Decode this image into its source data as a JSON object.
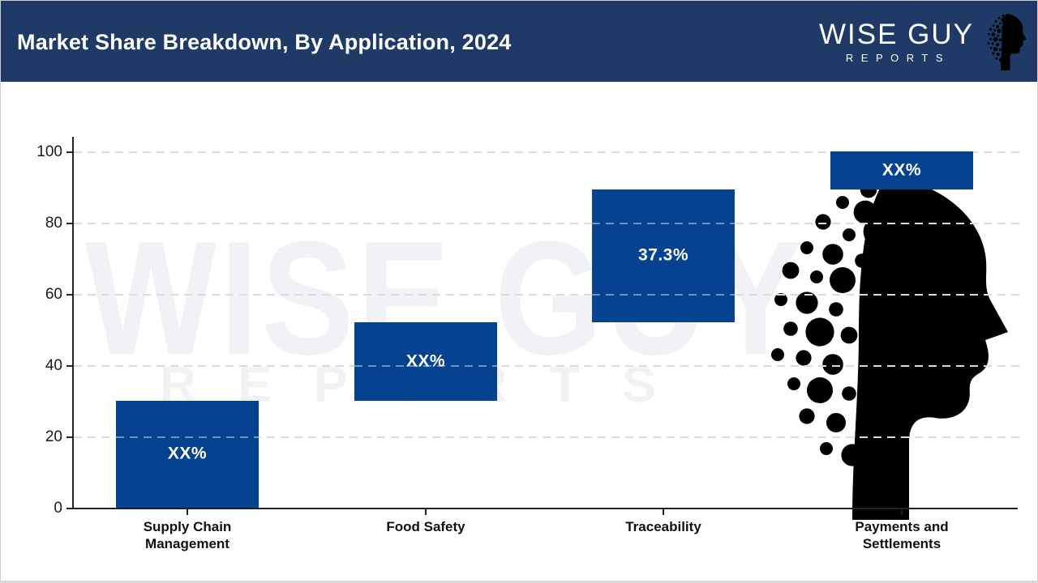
{
  "header": {
    "title": "Market Share Breakdown, By Application, 2024",
    "brand": {
      "name_top": "WISE GUY",
      "name_bottom": "REPORTS"
    }
  },
  "watermark": {
    "text_top": "WISE GUY",
    "text_bottom": "REPORTS"
  },
  "chart_data": {
    "type": "bar",
    "subtype": "floating-waterfall",
    "title": "Market Share Breakdown, By Application, 2024",
    "categories": [
      "Supply Chain Management",
      "Food Safety",
      "Traceability",
      "Payments and Settlements"
    ],
    "series": [
      {
        "name": "Market Share",
        "segments": [
          {
            "start": 0,
            "end": 30,
            "label": "XX%"
          },
          {
            "start": 30,
            "end": 52,
            "label": "XX%"
          },
          {
            "start": 52,
            "end": 89.3,
            "label": "37.3%"
          },
          {
            "start": 89.3,
            "end": 100,
            "label": "XX%"
          }
        ]
      }
    ],
    "xlabel": "",
    "ylabel": "",
    "ylim": [
      0,
      100
    ],
    "yticks": [
      0,
      20,
      40,
      60,
      80,
      100
    ],
    "grid": "horizontal-dashed",
    "legend": "none",
    "bar_color": "#05428f",
    "bar_label_color": "#ffffff",
    "header_color": "#1f3a67",
    "gridline_color": "#dcdcdc",
    "axis_color": "#222222"
  }
}
